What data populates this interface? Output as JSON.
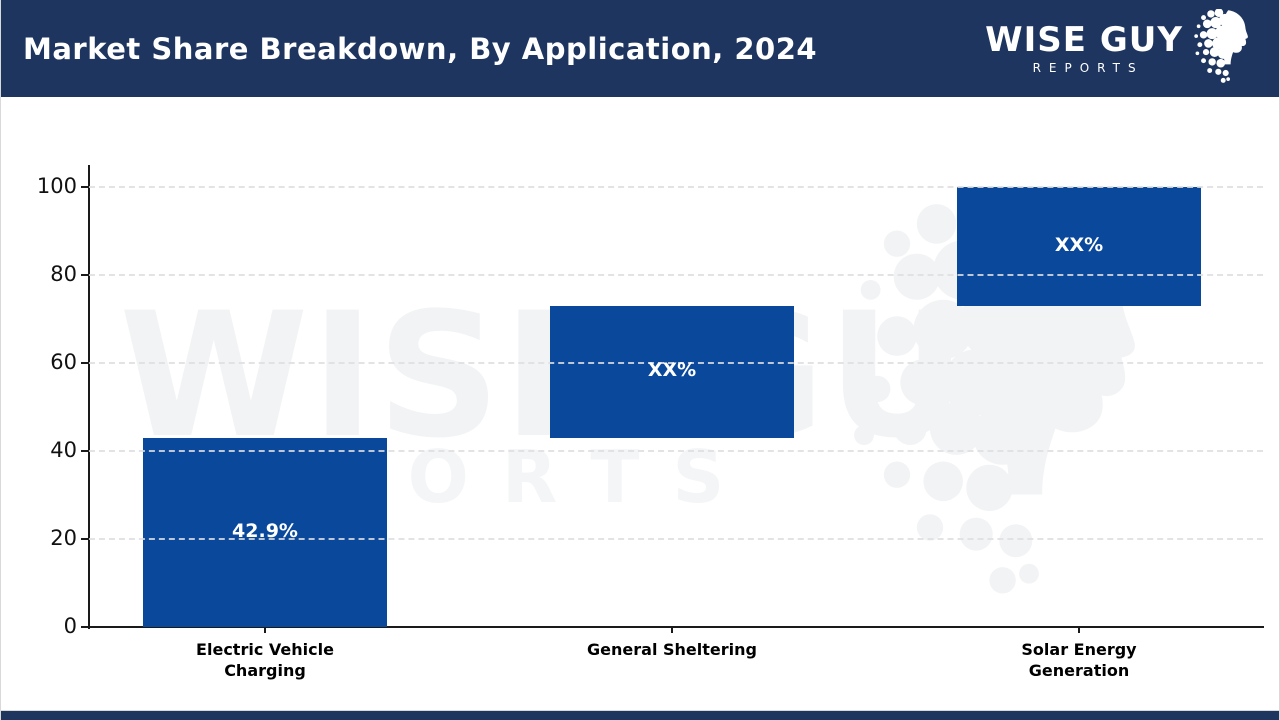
{
  "header": {
    "title": "Market Share Breakdown, By Application, 2024",
    "logo": {
      "line1": "WISE GUY",
      "line2": "REPORTS"
    }
  },
  "watermark": {
    "line1": "WISE GUY",
    "line2": "R E P O R T S"
  },
  "colors": {
    "header_bg": "#1e355f",
    "footer_bg": "#1e355f",
    "bar": "#0a489c",
    "grid": "#dedee0",
    "axis": "#1a1a1a",
    "watermark": "#f2f3f5"
  },
  "chart_data": {
    "type": "bar",
    "subtype": "waterfall",
    "title": "Market Share Breakdown, By Application, 2024",
    "categories": [
      "Electric Vehicle\nCharging",
      "General Sheltering",
      "Solar Energy\nGeneration"
    ],
    "segments": [
      {
        "category": "Electric Vehicle Charging",
        "start": 0,
        "end": 42.9,
        "label": "42.9%"
      },
      {
        "category": "General Sheltering",
        "start": 42.9,
        "end": 72.9,
        "label": "XX%"
      },
      {
        "category": "Solar Energy Generation",
        "start": 72.9,
        "end": 100,
        "label": "XX%"
      }
    ],
    "yticks": [
      0,
      20,
      40,
      60,
      80,
      100
    ],
    "ylim": [
      0,
      100
    ],
    "xlabel": "",
    "ylabel": "",
    "grid": "horizontal-dashed-above-bars",
    "legend": "none",
    "bar_color": "#0a489c",
    "value_label_color": "#ffffff"
  }
}
